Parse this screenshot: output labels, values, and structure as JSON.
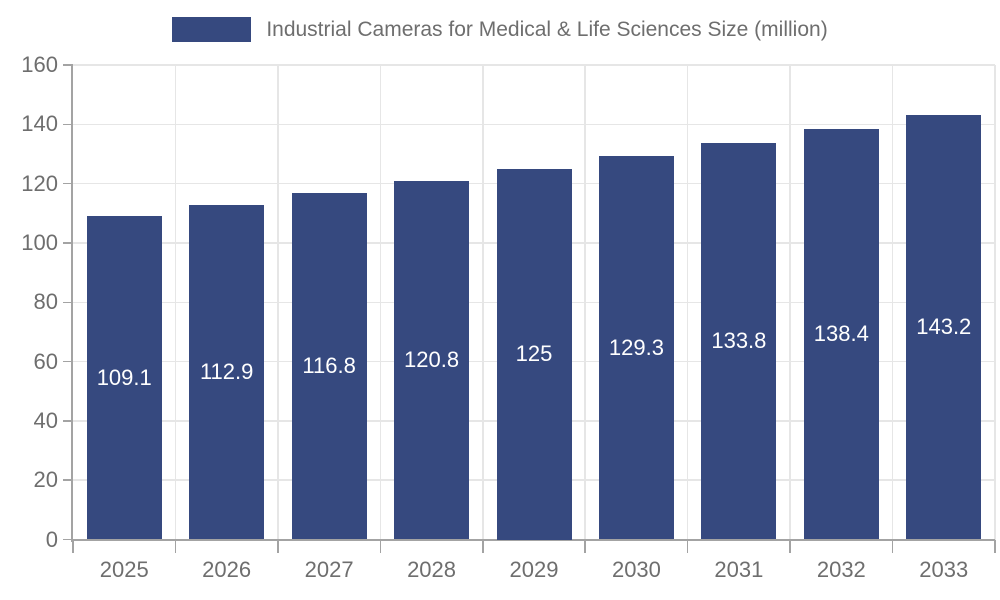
{
  "chart_data": {
    "type": "bar",
    "title": "Industrial Cameras for Medical & Life Sciences Size (million)",
    "categories": [
      "2025",
      "2026",
      "2027",
      "2028",
      "2029",
      "2030",
      "2031",
      "2032",
      "2033"
    ],
    "values": [
      109.1,
      112.9,
      116.8,
      120.8,
      125,
      129.3,
      133.8,
      138.4,
      143.2
    ],
    "data_labels": [
      "109.1",
      "112.9",
      "116.8",
      "120.8",
      "125",
      "129.3",
      "133.8",
      "138.4",
      "143.2"
    ],
    "xlabel": "",
    "ylabel": "",
    "ylim": [
      0,
      160
    ],
    "yticks": [
      0,
      20,
      40,
      60,
      80,
      100,
      120,
      140,
      160
    ],
    "grid": true,
    "legend_position": "top-center",
    "colors": {
      "bar": "#36497f",
      "value_label": "#ffffff",
      "axis_text": "#6e6e6e",
      "grid_line": "#e6e6e6",
      "axis_line": "#a3a3a3",
      "background": "#ffffff"
    }
  }
}
